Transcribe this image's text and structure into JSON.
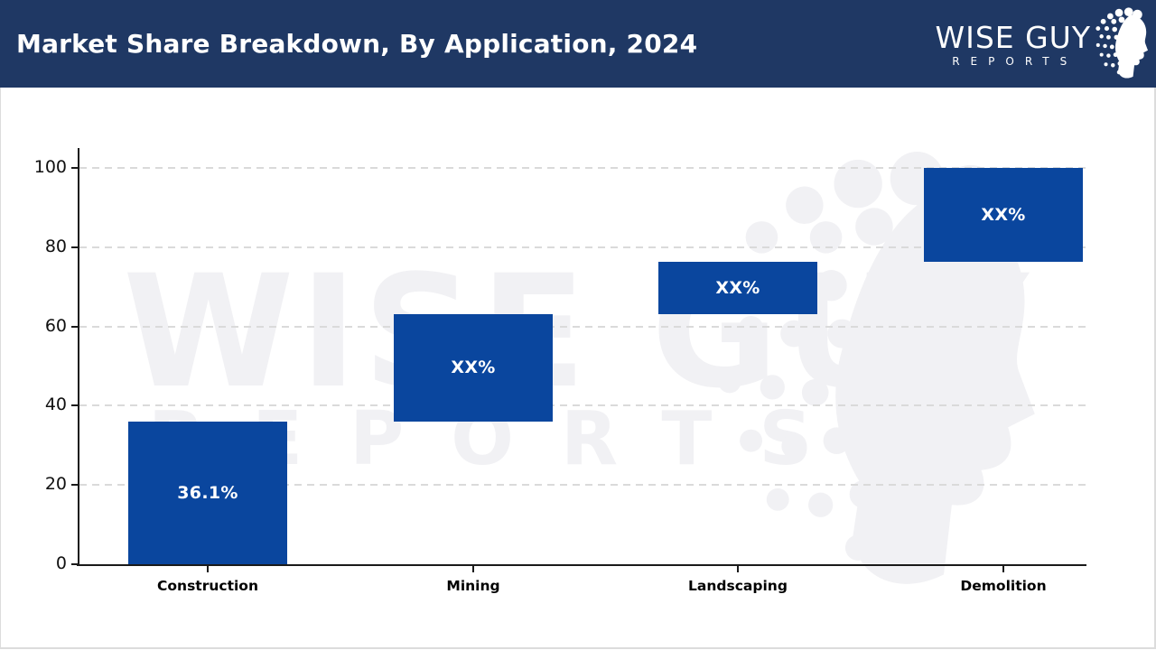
{
  "header": {
    "title": "Market Share Breakdown, By Application, 2024",
    "logo": {
      "name": "WISE GUY",
      "subtext": "REPORTS"
    }
  },
  "watermark": {
    "line1": "WISE GUY",
    "line2": "REPORTS"
  },
  "chart_data": {
    "type": "bar",
    "subtype": "waterfall-floating-bars",
    "title": "Market Share Breakdown, By Application, 2024",
    "xlabel": "",
    "ylabel": "",
    "categories": [
      "Construction",
      "Mining",
      "Landscaping",
      "Demolition"
    ],
    "segments": [
      {
        "category": "Construction",
        "start": 0,
        "end": 36.1,
        "label": "36.1%"
      },
      {
        "category": "Mining",
        "start": 36.1,
        "end": 63.2,
        "label": "XX%"
      },
      {
        "category": "Landscaping",
        "start": 63.2,
        "end": 76.4,
        "label": "XX%"
      },
      {
        "category": "Demolition",
        "start": 76.4,
        "end": 100,
        "label": "XX%"
      }
    ],
    "yticks": [
      0,
      20,
      40,
      60,
      80,
      100
    ],
    "ylim": [
      0,
      105
    ],
    "grid": "horizontal dashed",
    "legend": "none",
    "bar_color": "#0a469e",
    "bar_label_color": "#ffffff"
  },
  "colors": {
    "header_bg": "#1f3864",
    "title_text": "#ffffff",
    "bar": "#0a469e",
    "axis": "#1a1a1a",
    "grid": "#dadada",
    "watermark": "#f1f1f4",
    "page_bg": "#ffffff"
  }
}
